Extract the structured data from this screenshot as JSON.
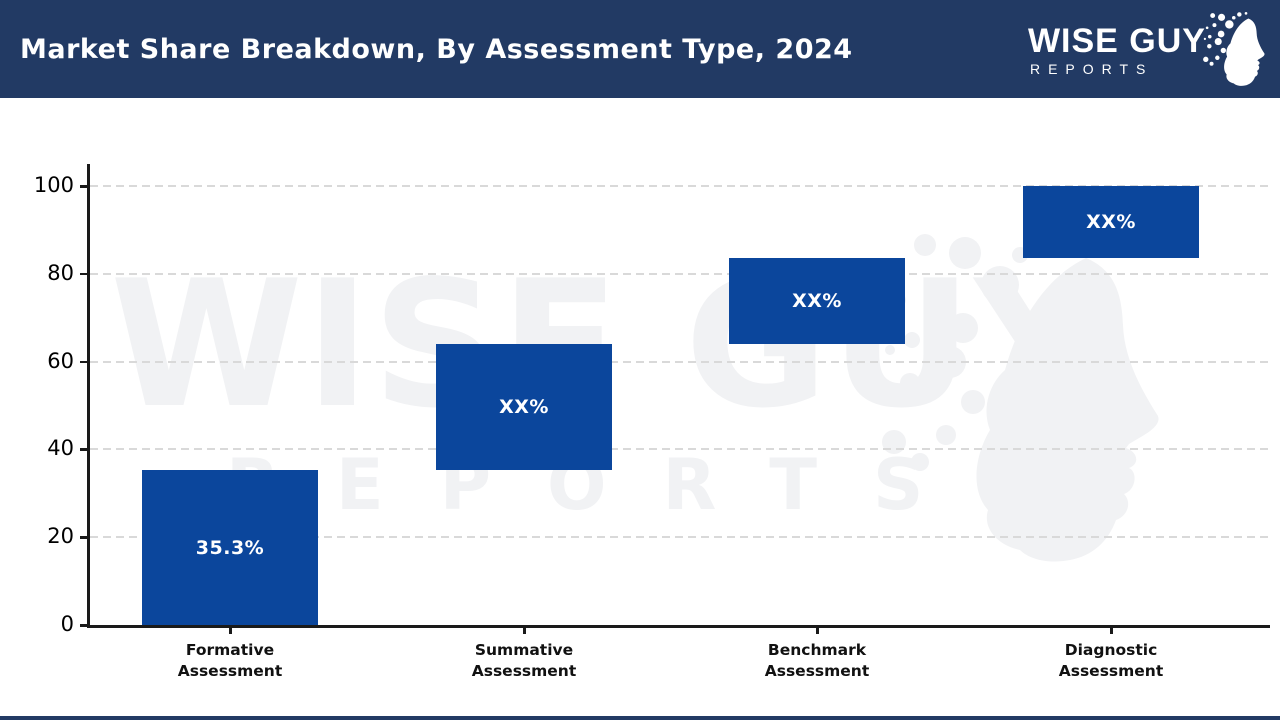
{
  "header": {
    "title": "Market Share Breakdown, By Assessment Type, 2024",
    "logo": {
      "wordmark": "WISE GUY",
      "subtext": "REPORTS"
    }
  },
  "watermark": {
    "line1": "WISE GUY",
    "line2": "REPORTS"
  },
  "chart_data": {
    "type": "bar",
    "subtype": "waterfall-cumulative-market-share",
    "title": "Market Share Breakdown, By Assessment Type, 2024",
    "categories": [
      "Formative Assessment",
      "Summative Assessment",
      "Benchmark Assessment",
      "Diagnostic Assessment"
    ],
    "segments": [
      {
        "category": "Formative Assessment",
        "start": 0,
        "end": 35.3,
        "label": "35.3%"
      },
      {
        "category": "Summative Assessment",
        "start": 35.3,
        "end": 64,
        "label": "XX%"
      },
      {
        "category": "Benchmark Assessment",
        "start": 64,
        "end": 83.5,
        "label": "XX%"
      },
      {
        "category": "Diagnostic Assessment",
        "start": 83.5,
        "end": 100,
        "label": "XX%"
      }
    ],
    "ylim": [
      0,
      100
    ],
    "yticks": [
      0,
      20,
      40,
      60,
      80,
      100
    ],
    "xlabel": "",
    "ylabel": "",
    "grid": "horizontal-dashed",
    "legend_position": "none",
    "value_labels_inside_bars": true
  },
  "colors": {
    "header_bg": "#223a64",
    "footer_bg": "#223a64",
    "bar": "#0b469c",
    "bar_label": "#ffffff",
    "grid": "#d9d9d9",
    "axis": "#1a1a1a",
    "watermark": "#f1f2f4",
    "title_text": "#ffffff"
  }
}
